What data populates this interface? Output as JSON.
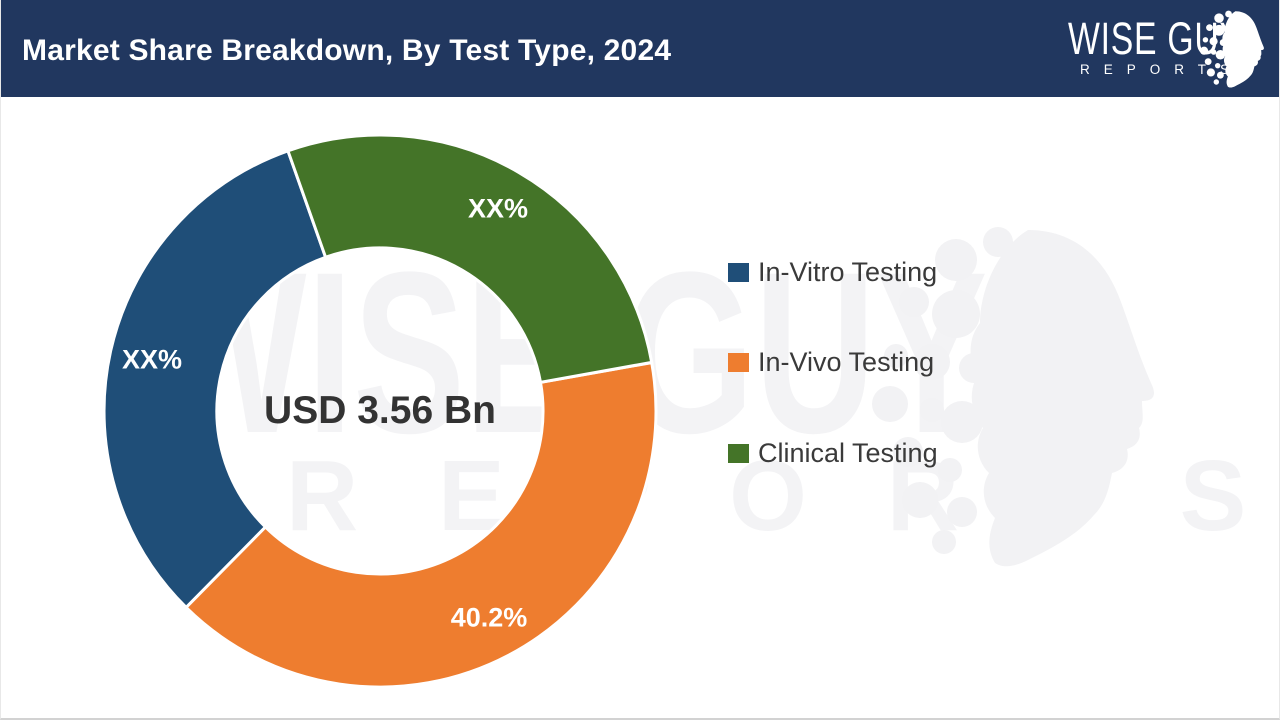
{
  "header": {
    "title": "Market Share Breakdown, By Test Type, 2024",
    "logo": {
      "wordmark": "WISE GUY",
      "subtext": "REPORTS"
    }
  },
  "watermark": {
    "wordmark": "WISE GUY",
    "subtext": "R E P O R T S"
  },
  "chart_data": {
    "type": "pie",
    "variant": "donut",
    "title": "Market Share Breakdown, By Test Type, 2024",
    "center_label": "USD 3.56 Bn",
    "donut_hole_ratio": 0.59,
    "legend_position": "right",
    "segments": [
      {
        "name": "In-Vitro Testing",
        "display_label": "XX%",
        "pct": 32.2,
        "pct_masked_on_chart": true,
        "start_deg": 224.6,
        "color": "#1F4E78"
      },
      {
        "name": "In-Vivo Testing",
        "display_label": "40.2%",
        "pct": 40.2,
        "pct_masked_on_chart": false,
        "start_deg": 79.9,
        "color": "#EE7D2F"
      },
      {
        "name": "Clinical Testing",
        "display_label": "XX%",
        "pct": 27.6,
        "pct_masked_on_chart": true,
        "start_deg": -19.5,
        "color": "#447428"
      }
    ]
  },
  "colors": {
    "header_bg": "#21375F",
    "title_text": "#FFFFFF",
    "slice_label_text": "#FFFFFF",
    "center_text": "#333333",
    "legend_text": "#3A3A3A",
    "watermark": "#F3F3F5",
    "slice_gap": "#FFFFFF"
  }
}
